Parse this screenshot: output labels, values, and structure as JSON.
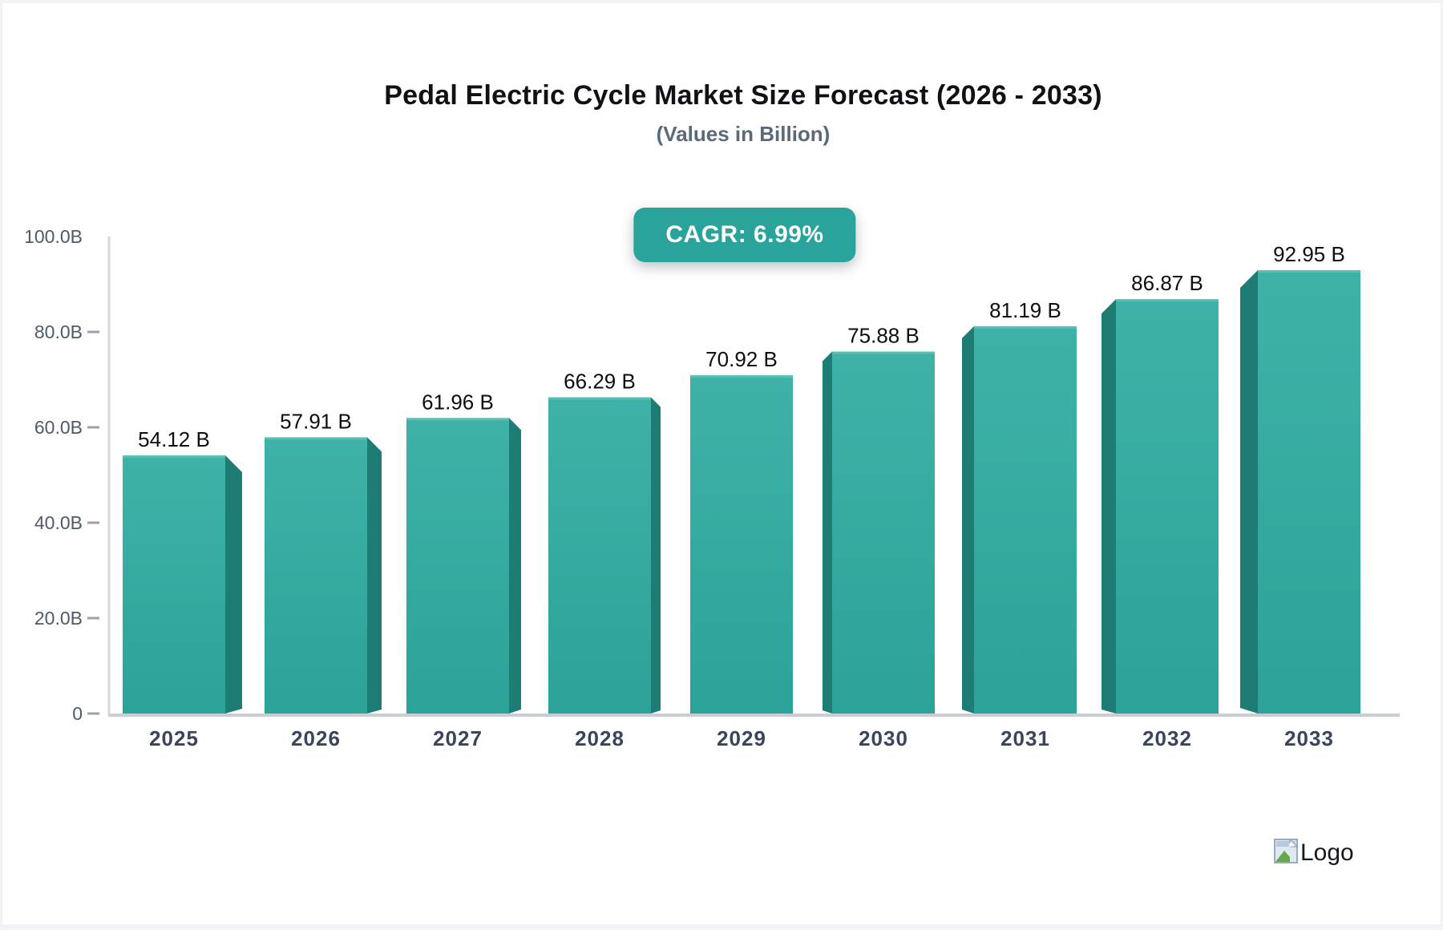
{
  "page": {
    "title": "Pedal Electric Cycle Market Size Forecast (2026 - 2033)",
    "subtitle": "(Values in Billion)",
    "cagr_badge": "CAGR: 6.99%",
    "logo_alt": "Logo"
  },
  "colors": {
    "bar_face_top": "#3fb2a7",
    "bar_face_bottom": "#2ba398",
    "bar_top_highlight": "#5cc1b6",
    "bar_side": "#1d7c73",
    "badge_bg": "#2aa49b",
    "axis_line": "#d5d9de",
    "baseline": "#c9ced4",
    "tick_label": "#4e5a6b",
    "year_label": "#39455a",
    "value_label": "#0c0e11"
  },
  "chart_data": {
    "type": "bar",
    "title": "Pedal Electric Cycle Market Size Forecast (2026 - 2033)",
    "subtitle": "(Values in Billion)",
    "cagr": "6.99%",
    "categories": [
      "2025",
      "2026",
      "2027",
      "2028",
      "2029",
      "2030",
      "2031",
      "2032",
      "2033"
    ],
    "values": [
      54.12,
      57.91,
      61.96,
      66.29,
      70.92,
      75.88,
      81.19,
      86.87,
      92.95
    ],
    "value_labels": [
      "54.12 B",
      "57.91 B",
      "61.96 B",
      "66.29 B",
      "70.92 B",
      "75.88 B",
      "81.19 B",
      "86.87 B",
      "92.95 B"
    ],
    "xlabel": "",
    "ylabel": "",
    "ylim": [
      0,
      100
    ],
    "grid": false,
    "legend": "none",
    "yticks": {
      "values": [
        0,
        20,
        40,
        60,
        80,
        100
      ],
      "labels": [
        "0",
        "20.0B",
        "40.0B",
        "60.0B",
        "80.0B",
        "100.0B"
      ]
    }
  }
}
